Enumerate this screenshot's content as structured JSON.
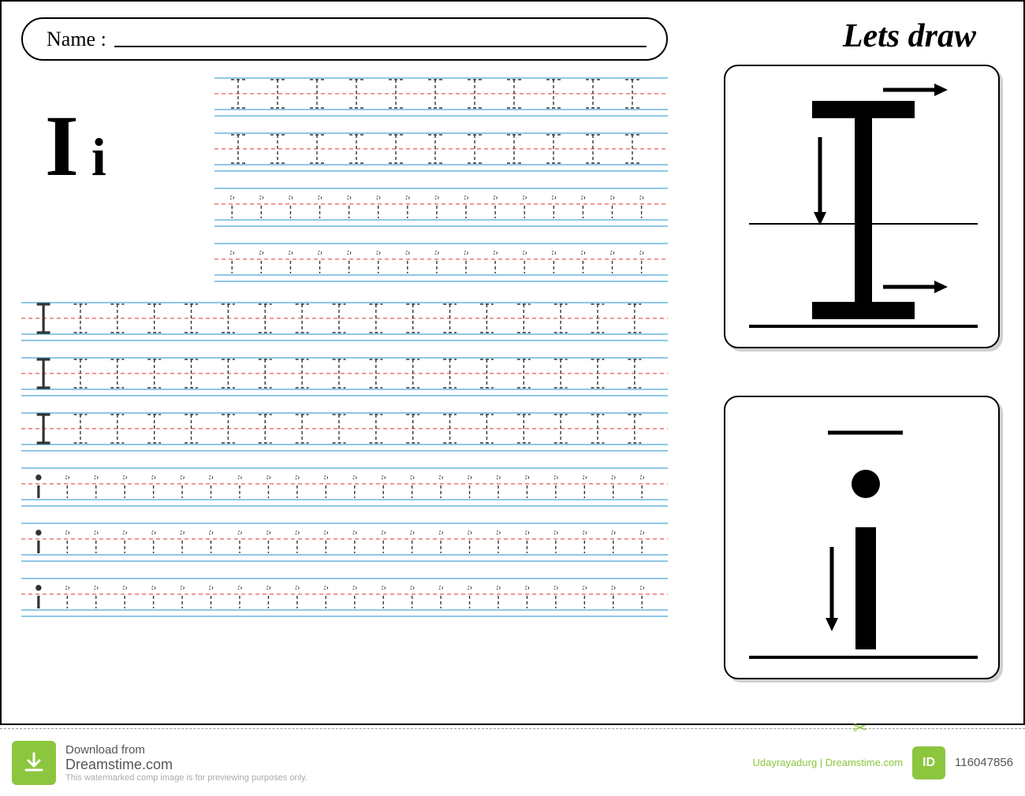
{
  "worksheet": {
    "name_label": "Name :",
    "title_right": "Lets draw",
    "letter_upper": "I",
    "letter_lower": "i",
    "colors": {
      "line_blue": "#4aa8d8",
      "line_red": "#e85a5a",
      "trace_dash": "#333333",
      "page_border": "#000000",
      "shadow": "#d0d0d0",
      "accent_green": "#8cc63f"
    },
    "top_rows": {
      "count": 4,
      "types": [
        "upper",
        "upper",
        "lower",
        "lower"
      ],
      "letters_per_row_upper": 11,
      "letters_per_row_lower": 15
    },
    "full_rows": {
      "count": 6,
      "types": [
        "upper",
        "upper",
        "upper",
        "lower",
        "lower",
        "lower"
      ],
      "letters_per_row_upper": 17,
      "letters_per_row_lower": 22,
      "show_solid_first": true
    },
    "guide": {
      "upper_letter": "I",
      "lower_letter": "i"
    }
  },
  "footer": {
    "download_line1": "Download from",
    "download_line2": "Dreamstime.com",
    "disclaimer": "This watermarked comp image is for previewing purposes only.",
    "id_label": "ID",
    "id_value": "116047856",
    "author": "Udayrayadurg | Dreamstime.com"
  }
}
